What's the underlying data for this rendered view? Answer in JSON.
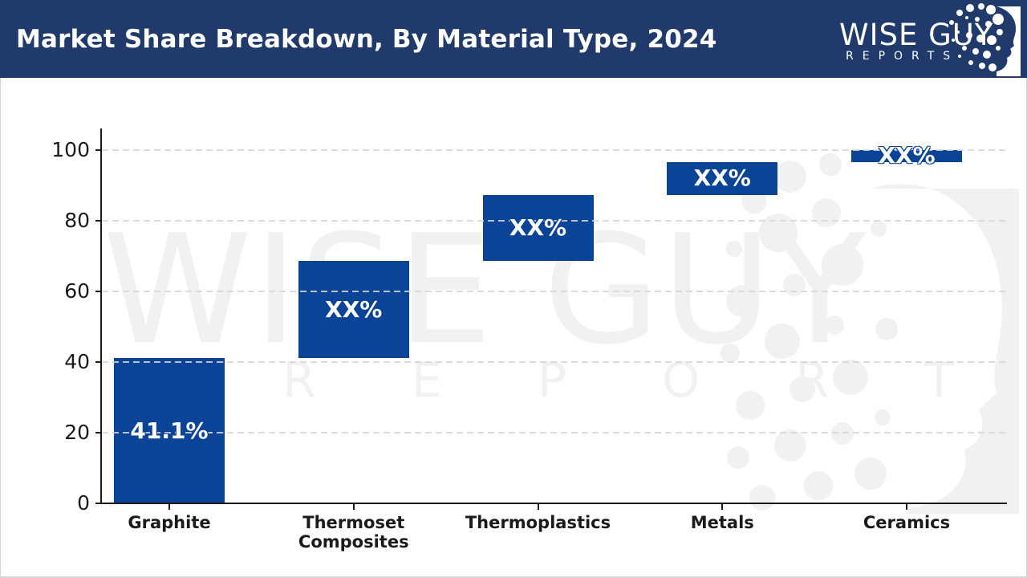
{
  "header": {
    "title": "Market Share Breakdown, By Material Type, 2024",
    "bg_color": "#1f3a6b",
    "logo": {
      "line1": "WISE GUY",
      "line2": "REPORTS"
    }
  },
  "watermark": {
    "line1": "WISE GUY",
    "line2": "R E P O R T S"
  },
  "chart_data": {
    "type": "bar",
    "subtype": "waterfall-stacked-progression",
    "title": "Market Share Breakdown, By Material Type, 2024",
    "xlabel": "",
    "ylabel": "",
    "ylim": [
      0,
      100
    ],
    "yticks": [
      0,
      20,
      40,
      60,
      80,
      100
    ],
    "grid": true,
    "bar_color": "#0b4397",
    "categories": [
      "Graphite",
      "Thermoset\nComposites",
      "Thermoplastics",
      "Metals",
      "Ceramics"
    ],
    "bars": [
      {
        "category": "Graphite",
        "start": 0,
        "end": 41.1,
        "label": "41.1%"
      },
      {
        "category": "Thermoset Composites",
        "start": 41.1,
        "end": 68.6,
        "label": "XX%"
      },
      {
        "category": "Thermoplastics",
        "start": 68.6,
        "end": 87.3,
        "label": "XX%"
      },
      {
        "category": "Metals",
        "start": 87.3,
        "end": 96.6,
        "label": "XX%"
      },
      {
        "category": "Ceramics",
        "start": 96.6,
        "end": 100.0,
        "label": "XX%"
      }
    ]
  }
}
